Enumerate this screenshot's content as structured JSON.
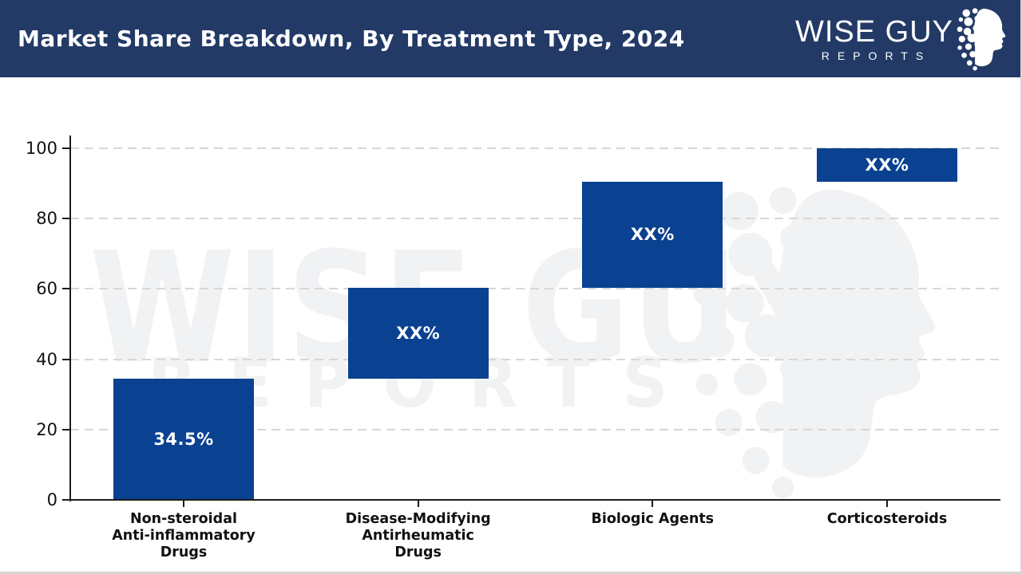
{
  "header": {
    "title": "Market Share Breakdown, By Treatment Type, 2024",
    "bg_color": "#233a67",
    "logo": {
      "line1": "WISE GUY",
      "line2": "REPORTS"
    }
  },
  "watermark": {
    "line1": "WISE GUY",
    "line2": "REPORTS"
  },
  "chart_data": {
    "type": "bar",
    "subtype": "waterfall",
    "title": "Market Share Breakdown, By Treatment Type, 2024",
    "xlabel": "",
    "ylabel": "",
    "ylim": [
      0,
      100
    ],
    "yticks": [
      0,
      20,
      40,
      60,
      80,
      100
    ],
    "grid": "horizontal-dashed",
    "legend": "none",
    "bar_color": "#0a4191",
    "value_label_color": "#ffffff",
    "categories": [
      "Non-steroidal Anti-inflammatory Drugs",
      "Disease-Modifying Antirheumatic Drugs",
      "Biologic Agents",
      "Corticosteroids"
    ],
    "segments": [
      {
        "category_lines": [
          "Non-steroidal",
          "Anti-inflammatory",
          "Drugs"
        ],
        "start": 0,
        "end": 34.5,
        "label": "34.5%"
      },
      {
        "category_lines": [
          "Disease-Modifying",
          "Antirheumatic",
          "Drugs"
        ],
        "start": 34.5,
        "end": 60.3,
        "label": "XX%"
      },
      {
        "category_lines": [
          "Biologic Agents"
        ],
        "start": 60.3,
        "end": 90.5,
        "label": "XX%"
      },
      {
        "category_lines": [
          "Corticosteroids"
        ],
        "start": 90.5,
        "end": 100,
        "label": "XX%"
      }
    ]
  }
}
